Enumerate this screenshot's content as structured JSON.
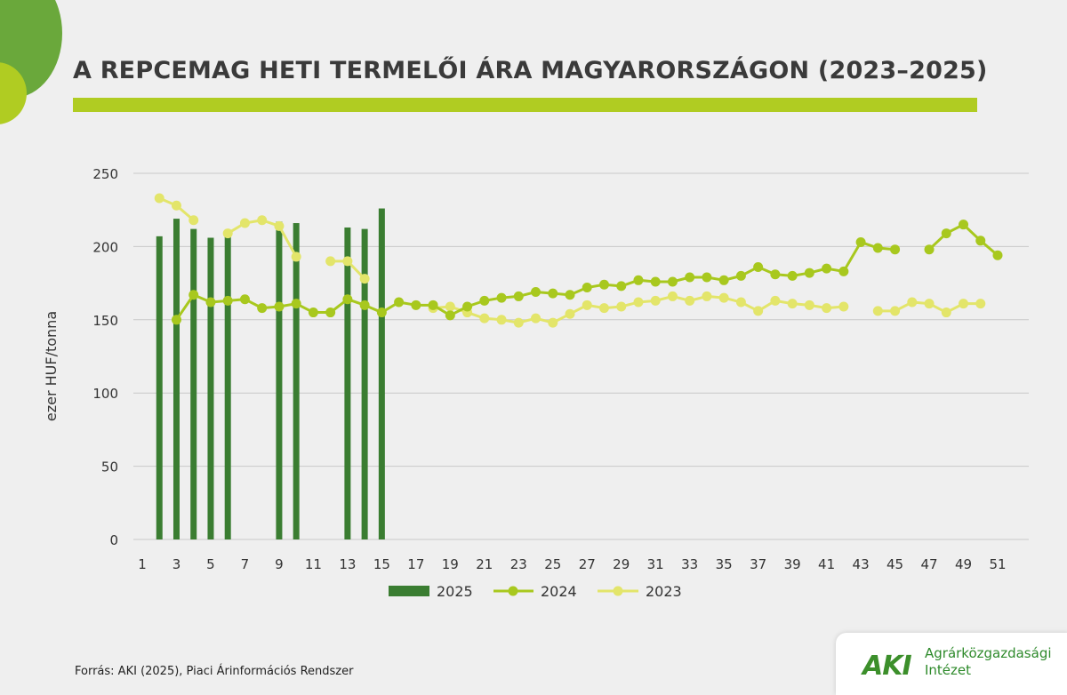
{
  "title": "A REPCEMAG HETI TERMELŐI ÁRA MAGYARORSZÁGON (2023–2025)",
  "source": "Forrás: AKI (2025), Piaci Árinformációs Rendszer",
  "logo": {
    "mark": "AKI",
    "line1": "Agrárközgazdasági",
    "line2": "Intézet"
  },
  "colors": {
    "s2025": "#3a7d31",
    "s2024": "#a8c81e",
    "s2023": "#e3e56a",
    "grid": "#c9c9c9",
    "titlebar": "#b0cc22"
  },
  "chart_data": {
    "type": "bar+line",
    "ylabel": "ezer HUF/tonna",
    "ylim": [
      0,
      250
    ],
    "yticks": [
      0,
      50,
      100,
      150,
      200,
      250
    ],
    "x_tick_labels": [
      "1",
      "3",
      "5",
      "7",
      "9",
      "11",
      "13",
      "15",
      "17",
      "19",
      "21",
      "23",
      "25",
      "27",
      "29",
      "31",
      "33",
      "35",
      "37",
      "39",
      "41",
      "43",
      "45",
      "47",
      "49",
      "51"
    ],
    "weeks": [
      1,
      2,
      3,
      4,
      5,
      6,
      7,
      8,
      9,
      10,
      11,
      12,
      13,
      14,
      15,
      16,
      17,
      18,
      19,
      20,
      21,
      22,
      23,
      24,
      25,
      26,
      27,
      28,
      29,
      30,
      31,
      32,
      33,
      34,
      35,
      36,
      37,
      38,
      39,
      40,
      41,
      42,
      43,
      44,
      45,
      46,
      47,
      48,
      49,
      50,
      51
    ],
    "series": [
      {
        "name": "2025",
        "kind": "bar",
        "values": [
          null,
          207,
          219,
          212,
          206,
          208,
          null,
          null,
          217,
          216,
          null,
          null,
          213,
          212,
          226,
          null,
          null,
          null,
          null,
          null,
          null,
          null,
          null,
          null,
          null,
          null,
          null,
          null,
          null,
          null,
          null,
          null,
          null,
          null,
          null,
          null,
          null,
          null,
          null,
          null,
          null,
          null,
          null,
          null,
          null,
          null,
          null,
          null,
          null,
          null,
          null
        ]
      },
      {
        "name": "2024",
        "kind": "line",
        "values": [
          null,
          null,
          150,
          167,
          162,
          163,
          164,
          158,
          159,
          161,
          155,
          155,
          164,
          160,
          155,
          162,
          160,
          160,
          153,
          159,
          163,
          165,
          166,
          169,
          168,
          167,
          172,
          174,
          173,
          177,
          176,
          176,
          179,
          179,
          177,
          180,
          186,
          181,
          180,
          182,
          185,
          183,
          203,
          199,
          198,
          null,
          198,
          209,
          215,
          204,
          194
        ]
      },
      {
        "name": "2023",
        "kind": "line",
        "values": [
          null,
          233,
          228,
          218,
          null,
          209,
          216,
          218,
          214,
          193,
          null,
          190,
          190,
          178,
          null,
          null,
          null,
          158,
          159,
          155,
          151,
          150,
          148,
          151,
          148,
          154,
          160,
          158,
          159,
          162,
          163,
          166,
          163,
          166,
          165,
          162,
          156,
          163,
          161,
          160,
          158,
          159,
          null,
          156,
          156,
          162,
          161,
          155,
          161,
          161,
          null
        ]
      }
    ]
  }
}
